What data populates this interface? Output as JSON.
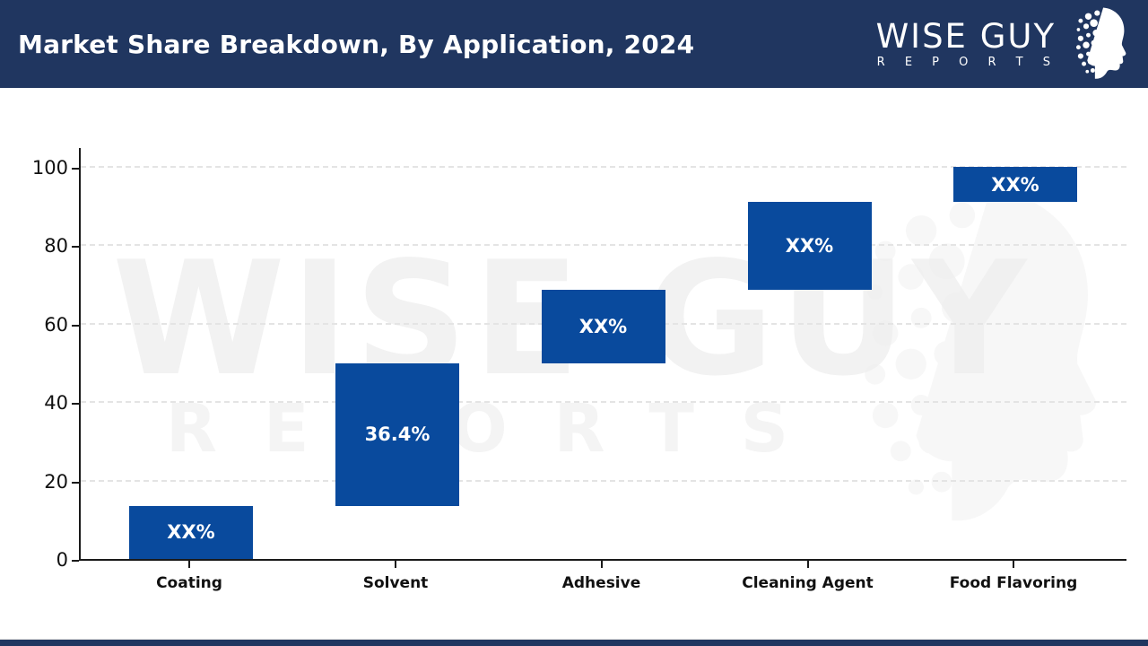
{
  "header": {
    "title": "Market Share Breakdown, By Application, 2024",
    "brand": {
      "line1": "WISE GUY",
      "line2": "R E P O R T S"
    }
  },
  "watermark": {
    "line1": "WISE GUY",
    "line2": "REPORTS"
  },
  "chart_data": {
    "type": "bar",
    "subtype": "waterfall",
    "title": "Market Share Breakdown, By Application, 2024",
    "categories": [
      "Coating",
      "Solvent",
      "Adhesive",
      "Cleaning Agent",
      "Food Flavoring"
    ],
    "segments": [
      {
        "category": "Coating",
        "start": 0,
        "end": 13.6,
        "value": 13.6,
        "label": "XX%"
      },
      {
        "category": "Solvent",
        "start": 13.6,
        "end": 50,
        "value": 36.4,
        "label": "36.4%"
      },
      {
        "category": "Adhesive",
        "start": 50,
        "end": 68.6,
        "value": 18.6,
        "label": "XX%"
      },
      {
        "category": "Cleaning Agent",
        "start": 68.6,
        "end": 91,
        "value": 22.4,
        "label": "XX%"
      },
      {
        "category": "Food Flavoring",
        "start": 91,
        "end": 100,
        "value": 9.0,
        "label": "XX%"
      }
    ],
    "yticks": [
      0,
      20,
      40,
      60,
      80,
      100
    ],
    "ylim": [
      0,
      105
    ],
    "xlabel": "",
    "ylabel": "",
    "grid": "horizontal-dashed",
    "legend": "none",
    "bar_color": "#094a9d",
    "bar_label_color": "#ffffff"
  },
  "colors": {
    "header_bg": "#203660",
    "footer_bg": "#203660",
    "axis": "#1a1a1a",
    "gridline": "#e4e4e4",
    "watermark": "#f2f2f2"
  }
}
